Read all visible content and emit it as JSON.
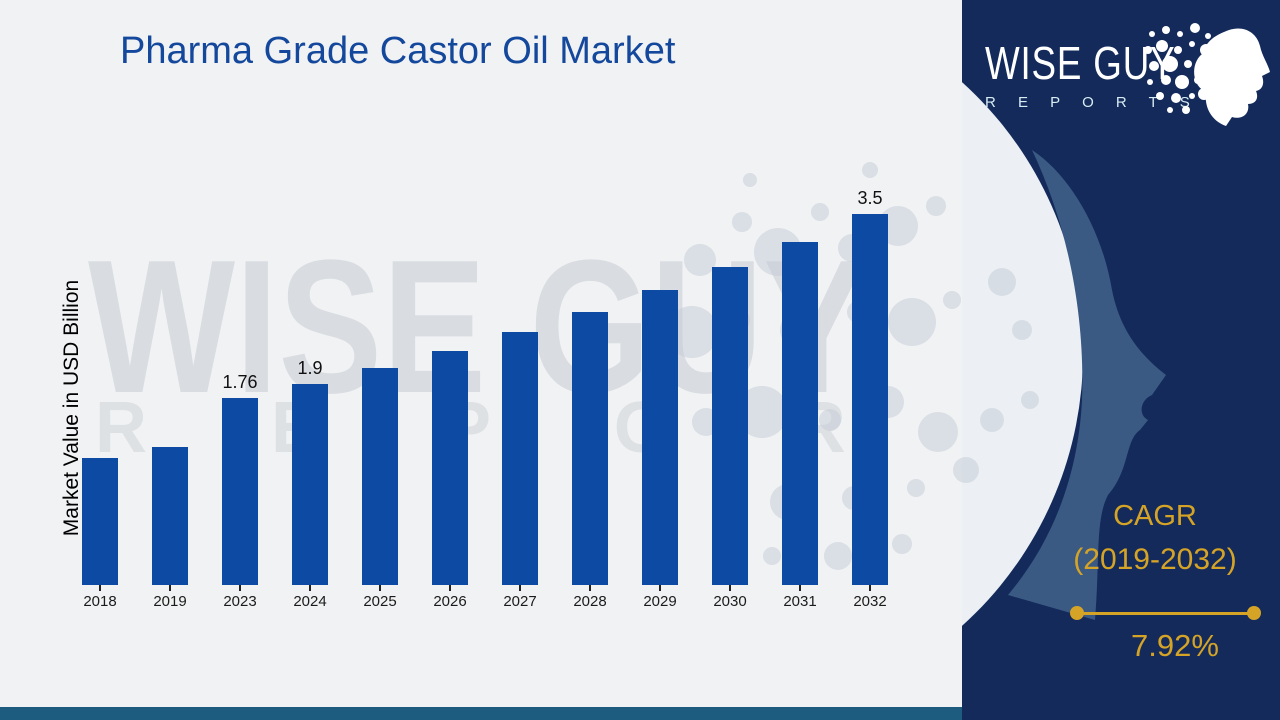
{
  "title": "Pharma Grade Castor Oil Market",
  "y_axis_label": "Market Value in USD Billion",
  "watermark": {
    "line1": "WISE GUY",
    "line2": "R E P O R T S"
  },
  "logo": {
    "line1": "WISE GUY",
    "line2": "R E P O R T S"
  },
  "cagr": {
    "heading": "CAGR",
    "range": "(2019-2032)",
    "value": "7.92%"
  },
  "colors": {
    "bar": "#0d4aa3",
    "title": "#14489c",
    "sidebar": "#132a5b",
    "bottom_strip": "#1d5c7e",
    "accent_gold": "#d5a426",
    "background": "#f1f2f3"
  },
  "chart_data": {
    "type": "bar",
    "title": "Pharma Grade Castor Oil Market",
    "xlabel": "",
    "ylabel": "Market Value in USD Billion",
    "categories": [
      "2018",
      "2019",
      "2023",
      "2024",
      "2025",
      "2026",
      "2027",
      "2028",
      "2029",
      "2030",
      "2031",
      "2032"
    ],
    "values": [
      1.2,
      1.3,
      1.76,
      1.9,
      2.05,
      2.21,
      2.39,
      2.58,
      2.78,
      3.0,
      3.24,
      3.5
    ],
    "data_labels": {
      "2023": "1.76",
      "2024": "1.9",
      "2032": "3.5"
    },
    "ylim": [
      0,
      3.7
    ],
    "grid": false,
    "legend": false,
    "bar_color": "#0d4aa3"
  }
}
